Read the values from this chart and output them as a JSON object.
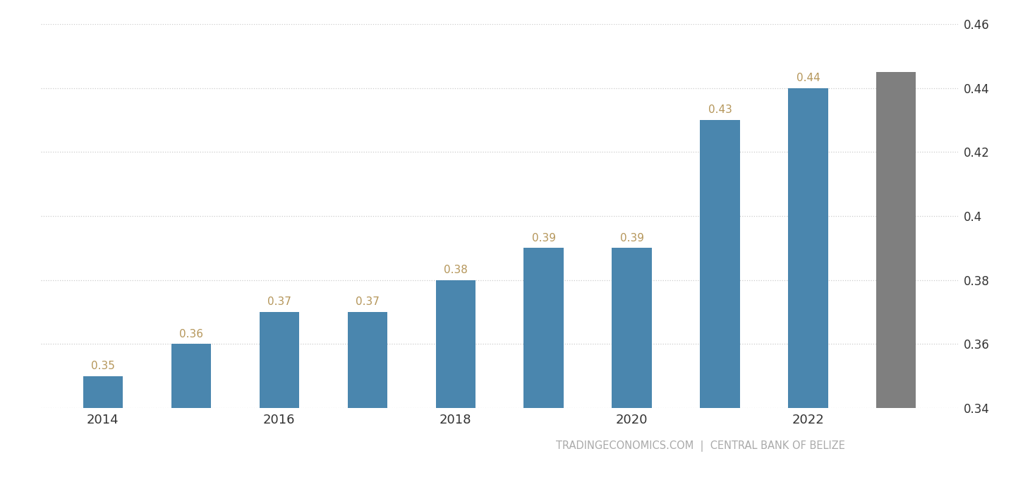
{
  "years": [
    2014,
    2015,
    2016,
    2017,
    2018,
    2019,
    2020,
    2021,
    2022,
    2023
  ],
  "values": [
    0.35,
    0.36,
    0.37,
    0.37,
    0.38,
    0.39,
    0.39,
    0.43,
    0.44,
    0.445
  ],
  "bar_colors": [
    "#4a86ae",
    "#4a86ae",
    "#4a86ae",
    "#4a86ae",
    "#4a86ae",
    "#4a86ae",
    "#4a86ae",
    "#4a86ae",
    "#4a86ae",
    "#7f7f7f"
  ],
  "value_labels": [
    "0.35",
    "0.36",
    "0.37",
    "0.37",
    "0.38",
    "0.39",
    "0.39",
    "0.43",
    "0.44",
    ""
  ],
  "label_color": "#b5965a",
  "ylim": [
    0.34,
    0.46
  ],
  "yticks": [
    0.34,
    0.36,
    0.38,
    0.4,
    0.42,
    0.44,
    0.46
  ],
  "xtick_labels": [
    "2014",
    "",
    "2016",
    "",
    "2018",
    "",
    "2020",
    "",
    "2022",
    ""
  ],
  "watermark": "TRADINGECONOMICS.COM  |  CENTRAL BANK OF BELIZE",
  "watermark_color": "#aaaaaa",
  "background_color": "#ffffff",
  "grid_color": "#cccccc",
  "bar_width": 0.45
}
